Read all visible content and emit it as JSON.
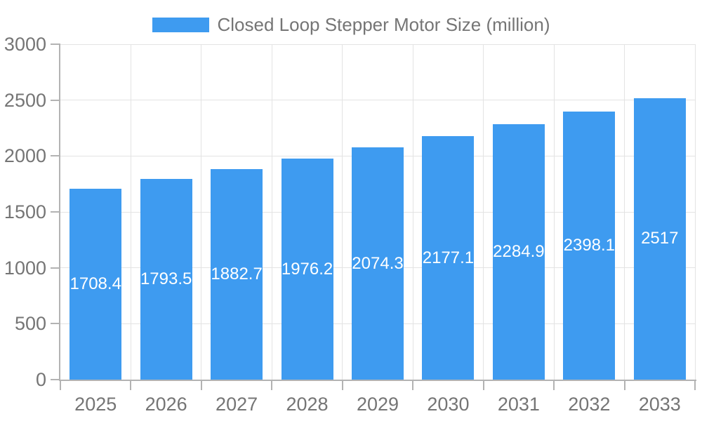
{
  "legend": {
    "label": "Closed Loop Stepper Motor Size (million)"
  },
  "chart_data": {
    "type": "bar",
    "title": "Closed Loop Stepper Motor Size (million)",
    "categories": [
      "2025",
      "2026",
      "2027",
      "2028",
      "2029",
      "2030",
      "2031",
      "2032",
      "2033"
    ],
    "values": [
      1708.4,
      1793.5,
      1882.7,
      1976.2,
      2074.3,
      2177.1,
      2284.9,
      2398.1,
      2517
    ],
    "value_labels": [
      "1708.4",
      "1793.5",
      "1882.7",
      "1976.2",
      "2074.3",
      "2177.1",
      "2284.9",
      "2398.1",
      "2517"
    ],
    "xlabel": "",
    "ylabel": "",
    "ylim": [
      0,
      3000
    ],
    "y_ticks": [
      0,
      500,
      1000,
      1500,
      2000,
      2500,
      3000
    ],
    "grid": true,
    "legend_position": "top",
    "value_label_position": "inside-center",
    "colors": {
      "bar": "#3E9BF0",
      "value_label": "#FFFFFF",
      "axis_text": "#757575",
      "grid_line": "#E3E3E3",
      "axis_line": "#B3B3B3",
      "background": "#FFFFFF"
    }
  }
}
